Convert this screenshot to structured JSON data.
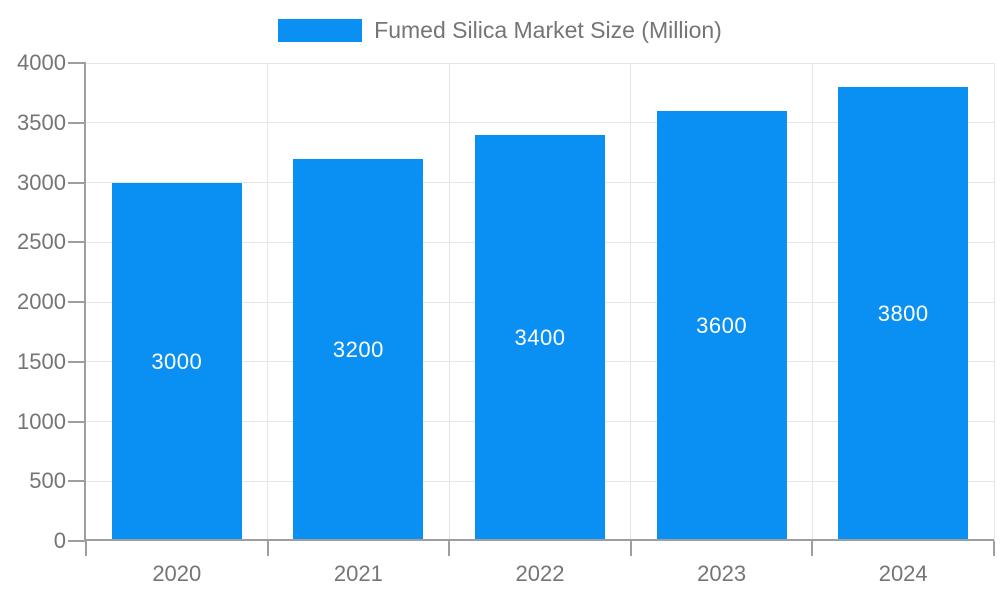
{
  "chart_data": {
    "type": "bar",
    "title": "Fumed Silica Market Size (Million)",
    "legend": [
      "Fumed Silica Market Size (Million)"
    ],
    "legend_position": "top-center",
    "categories": [
      "2020",
      "2021",
      "2022",
      "2023",
      "2024"
    ],
    "values": [
      3000,
      3200,
      3400,
      3600,
      3800
    ],
    "bar_labels_visible": true,
    "xlabel": "",
    "ylabel": "",
    "ylim": [
      0,
      4000
    ],
    "yticks": [
      0,
      500,
      1000,
      1500,
      2000,
      2500,
      3000,
      3500,
      4000
    ],
    "grid": true,
    "colors": {
      "bar": "#0a8ff2",
      "bar_label_text": "#ffffff",
      "axis_line": "#9e9e9e",
      "gridline": "#e6e6e6",
      "axis_text": "#757575",
      "background": "#ffffff"
    }
  }
}
